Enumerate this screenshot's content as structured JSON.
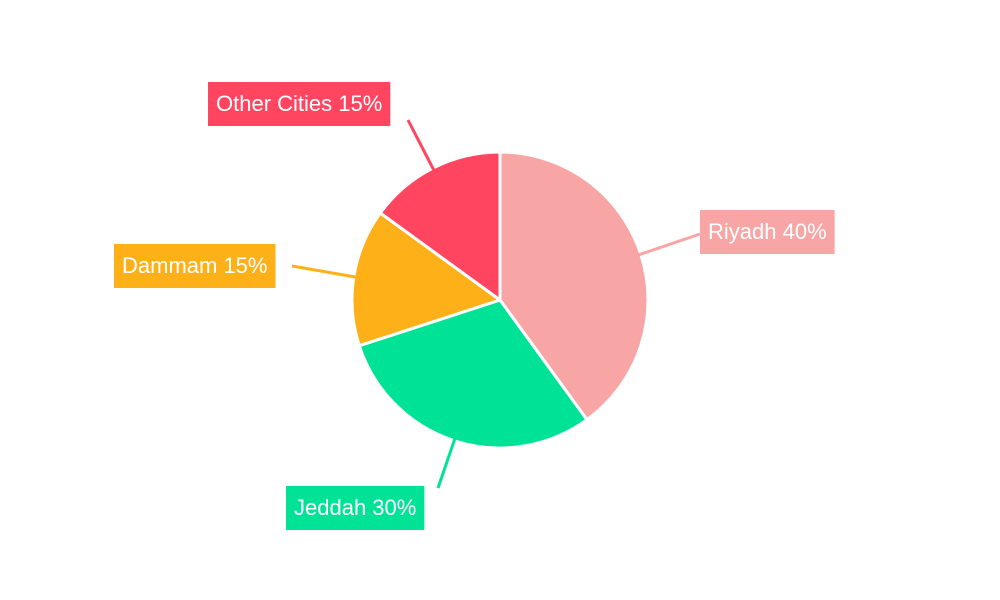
{
  "chart_data": {
    "type": "pie",
    "title": "",
    "slices": [
      {
        "label": "Riyadh",
        "value": 40,
        "display": "Riyadh 40%",
        "color": "#F8A5A5"
      },
      {
        "label": "Jeddah",
        "value": 30,
        "display": "Jeddah 30%",
        "color": "#00E396"
      },
      {
        "label": "Dammam",
        "value": 15,
        "display": "Dammam 15%",
        "color": "#FEB019"
      },
      {
        "label": "Other Cities",
        "value": 15,
        "display": "Other Cities 15%",
        "color": "#FF4560"
      }
    ],
    "legend": "none",
    "label_style": "callout"
  }
}
